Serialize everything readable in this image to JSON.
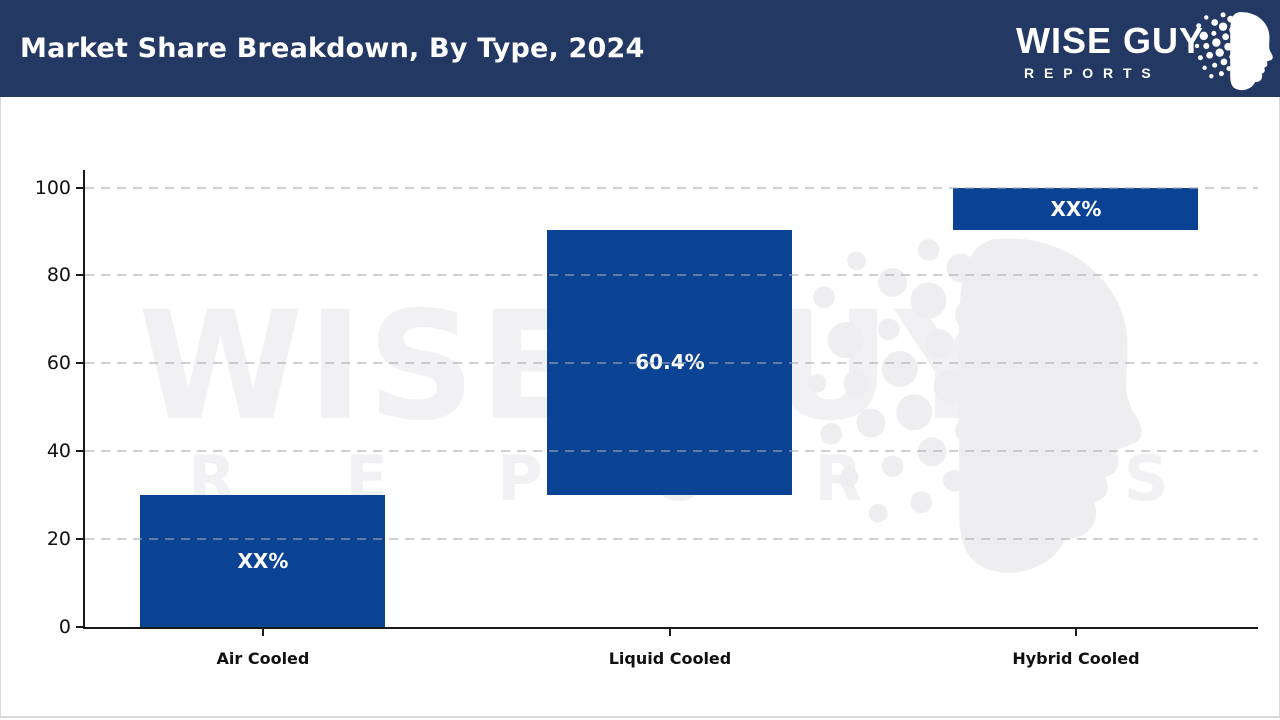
{
  "header": {
    "title": "Market Share Breakdown, By Type, 2024",
    "bg_color": "#233963",
    "logo": {
      "line1": "WISE GUY",
      "line2": "R E P O R T S"
    }
  },
  "watermark": {
    "line1": "WISE GUY",
    "line2": "R E P O R T S"
  },
  "chart_data": {
    "type": "bar",
    "variant": "waterfall",
    "title": "Market Share Breakdown, By Type, 2024",
    "categories": [
      "Air Cooled",
      "Liquid Cooled",
      "Hybrid Cooled"
    ],
    "segments": [
      {
        "category": "Air Cooled",
        "from": 0,
        "to": 30,
        "value_label": "XX%"
      },
      {
        "category": "Liquid Cooled",
        "from": 30,
        "to": 90.4,
        "value_label": "60.4%"
      },
      {
        "category": "Hybrid Cooled",
        "from": 90.4,
        "to": 100,
        "value_label": "XX%"
      }
    ],
    "yticks": [
      0,
      20,
      40,
      60,
      80,
      100
    ],
    "ylim": [
      0,
      104
    ],
    "xlabel": "",
    "ylabel": "",
    "grid": {
      "axis": "y",
      "style": "dashed",
      "drawn_above_bars": true
    },
    "legend": "none",
    "bar_color": "#0B4394",
    "bar_label_color": "#ffffff"
  }
}
